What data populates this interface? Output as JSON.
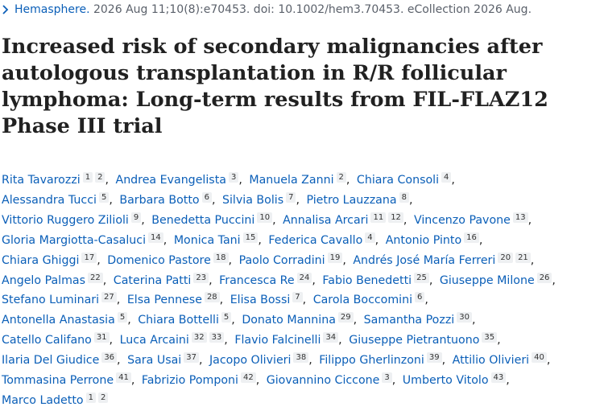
{
  "citation": {
    "journal": "Hemasphere.",
    "details": " 2026 Aug 11;10(8):e70453. doi: 10.1002/hem3.70453. eCollection 2026 Aug."
  },
  "title": "Increased risk of secondary malignancies after autologous transplantation in R/R follicular lymphoma: Long-term results from FIL-FLAZ12 Phase III trial",
  "authors": {
    "separator": ",",
    "list": [
      {
        "name": "Rita Tavarozzi",
        "refs": [
          1,
          2
        ]
      },
      {
        "name": "Andrea Evangelista",
        "refs": [
          3
        ]
      },
      {
        "name": "Manuela Zanni",
        "refs": [
          2
        ]
      },
      {
        "name": "Chiara Consoli",
        "refs": [
          4
        ]
      },
      {
        "name": "Alessandra Tucci",
        "refs": [
          5
        ]
      },
      {
        "name": "Barbara Botto",
        "refs": [
          6
        ]
      },
      {
        "name": "Silvia Bolis",
        "refs": [
          7
        ]
      },
      {
        "name": "Pietro Lauzzana",
        "refs": [
          8
        ]
      },
      {
        "name": "Vittorio Ruggero Zilioli",
        "refs": [
          9
        ]
      },
      {
        "name": "Benedetta Puccini",
        "refs": [
          10
        ]
      },
      {
        "name": "Annalisa Arcari",
        "refs": [
          11,
          12
        ]
      },
      {
        "name": "Vincenzo Pavone",
        "refs": [
          13
        ]
      },
      {
        "name": "Gloria Margiotta-Casaluci",
        "refs": [
          14
        ]
      },
      {
        "name": "Monica Tani",
        "refs": [
          15
        ]
      },
      {
        "name": "Federica Cavallo",
        "refs": [
          4
        ]
      },
      {
        "name": "Antonio Pinto",
        "refs": [
          16
        ]
      },
      {
        "name": "Chiara Ghiggi",
        "refs": [
          17
        ]
      },
      {
        "name": "Domenico Pastore",
        "refs": [
          18
        ]
      },
      {
        "name": "Paolo Corradini",
        "refs": [
          19
        ]
      },
      {
        "name": "Andrés José María Ferreri",
        "refs": [
          20,
          21
        ]
      },
      {
        "name": "Angelo Palmas",
        "refs": [
          22
        ]
      },
      {
        "name": "Caterina Patti",
        "refs": [
          23
        ]
      },
      {
        "name": "Francesca Re",
        "refs": [
          24
        ]
      },
      {
        "name": "Fabio Benedetti",
        "refs": [
          25
        ]
      },
      {
        "name": "Giuseppe Milone",
        "refs": [
          26
        ]
      },
      {
        "name": "Stefano Luminari",
        "refs": [
          27
        ]
      },
      {
        "name": "Elsa Pennese",
        "refs": [
          28
        ]
      },
      {
        "name": "Elisa Bossi",
        "refs": [
          7
        ]
      },
      {
        "name": "Carola Boccomini",
        "refs": [
          6
        ]
      },
      {
        "name": "Antonella Anastasia",
        "refs": [
          5
        ]
      },
      {
        "name": "Chiara Bottelli",
        "refs": [
          5
        ]
      },
      {
        "name": "Donato Mannina",
        "refs": [
          29
        ]
      },
      {
        "name": "Samantha Pozzi",
        "refs": [
          30
        ]
      },
      {
        "name": "Catello Califano",
        "refs": [
          31
        ]
      },
      {
        "name": "Luca Arcaini",
        "refs": [
          32,
          33
        ]
      },
      {
        "name": "Flavio Falcinelli",
        "refs": [
          34
        ]
      },
      {
        "name": "Giuseppe Pietrantuono",
        "refs": [
          35
        ]
      },
      {
        "name": "Ilaria Del Giudice",
        "refs": [
          36
        ]
      },
      {
        "name": "Sara Usai",
        "refs": [
          37
        ]
      },
      {
        "name": "Jacopo Olivieri",
        "refs": [
          38
        ]
      },
      {
        "name": "Filippo Gherlinzoni",
        "refs": [
          39
        ]
      },
      {
        "name": "Attilio Olivieri",
        "refs": [
          40
        ]
      },
      {
        "name": "Tommasina Perrone",
        "refs": [
          41
        ]
      },
      {
        "name": "Fabrizio Pomponi",
        "refs": [
          42
        ]
      },
      {
        "name": "Giovannino Ciccone",
        "refs": [
          3
        ]
      },
      {
        "name": "Umberto Vitolo",
        "refs": [
          43
        ]
      },
      {
        "name": "Marco Ladetto",
        "refs": [
          1,
          2
        ]
      }
    ]
  }
}
